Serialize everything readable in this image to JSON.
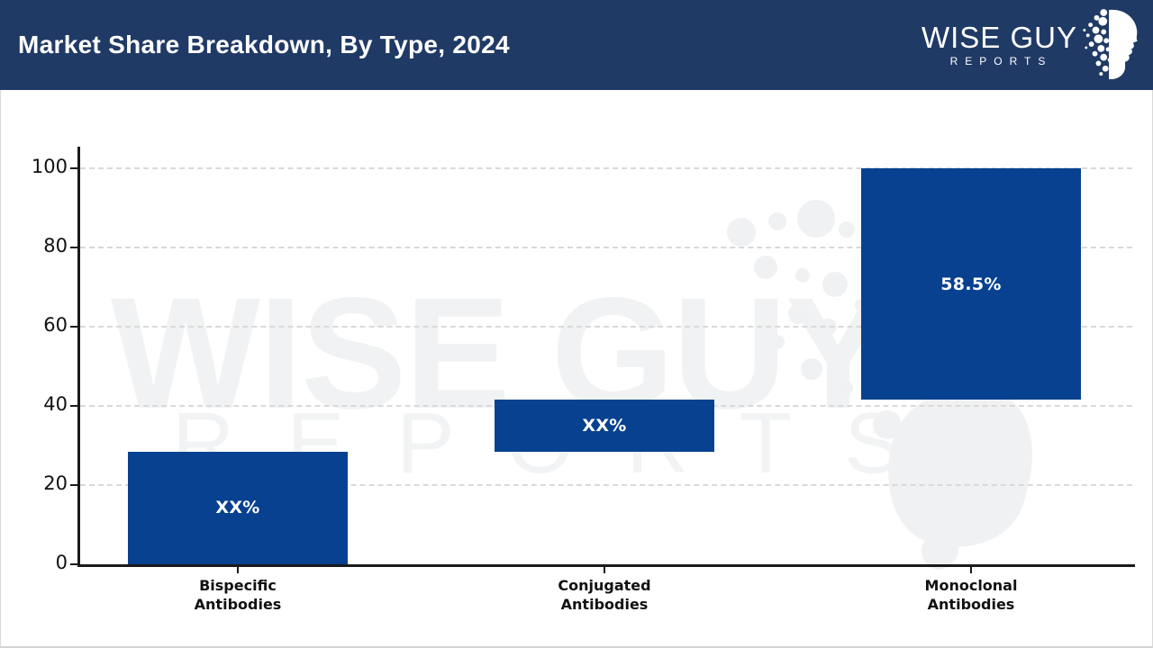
{
  "header": {
    "title": "Market Share Breakdown, By Type, 2024",
    "logo_line1": "WISE GUY",
    "logo_line2": "REPORTS"
  },
  "watermark": {
    "line1": "WISE GUY",
    "line2": "REPORTS"
  },
  "chart_data": {
    "type": "bar",
    "subtype": "waterfall",
    "title": "Market Share Breakdown, By Type, 2024",
    "categories": [
      "Bispecific\nAntibodies",
      "Conjugated\nAntibodies",
      "Monoclonal\nAntibodies"
    ],
    "series": [
      {
        "name": "Market Share (%)",
        "segments": [
          {
            "category": "Bispecific Antibodies",
            "start": 0,
            "end": 28.5,
            "label": "XX%"
          },
          {
            "category": "Conjugated Antibodies",
            "start": 28.5,
            "end": 41.5,
            "label": "XX%"
          },
          {
            "category": "Monoclonal Antibodies",
            "start": 41.5,
            "end": 100,
            "label": "58.5%"
          }
        ]
      }
    ],
    "yticks": [
      0,
      20,
      40,
      60,
      80,
      100
    ],
    "ylim": [
      0,
      105.5
    ],
    "grid": "horizontal-dashed",
    "legend": "none",
    "bar_color": "#07418f",
    "bar_label_color": "#ffffff",
    "axis_color": "#1a1a1a",
    "grid_color": "#d9d9d9",
    "header_bg_color": "#203a66"
  }
}
